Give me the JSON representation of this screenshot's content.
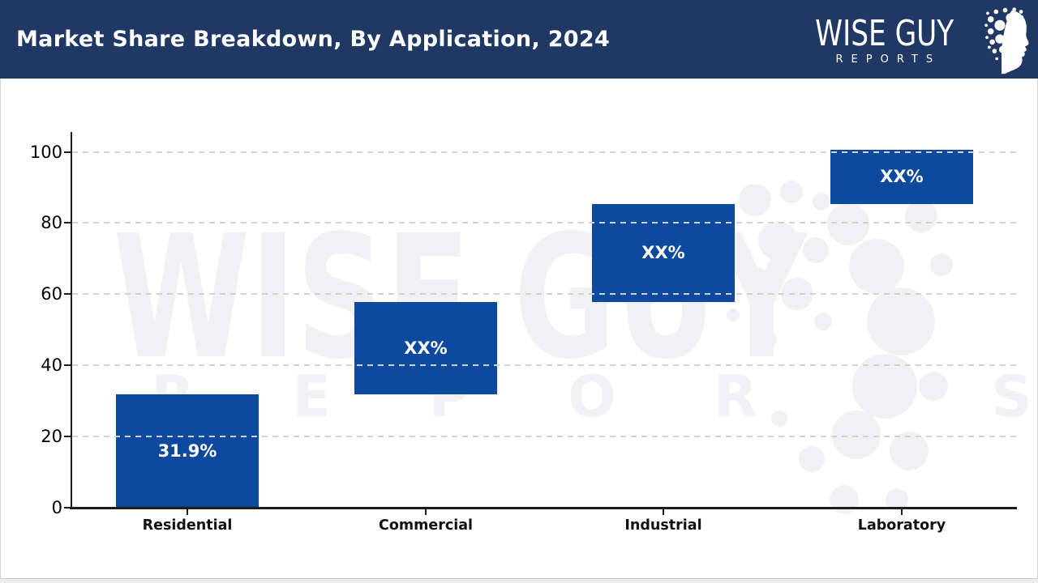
{
  "header": {
    "title": "Market Share Breakdown, By Application, 2024",
    "background_color": "#203864",
    "logo": {
      "wordmark": "WISE GUY",
      "subtext": "REPORTS"
    }
  },
  "watermark": {
    "line1": "WISE GUY",
    "line2": "R E P O R T S"
  },
  "chart_data": {
    "type": "bar",
    "subtype": "floating-waterfall",
    "title": "Market Share Breakdown, By Application, 2024",
    "categories": [
      "Residential",
      "Commercial",
      "Industrial",
      "Laboratory"
    ],
    "series": [
      {
        "name": "Market share (%)",
        "segments": [
          {
            "category": "Residential",
            "from": 0,
            "to": 31.9,
            "label": "31.9%"
          },
          {
            "category": "Commercial",
            "from": 31.9,
            "to": 57.8,
            "label": "XX%"
          },
          {
            "category": "Industrial",
            "from": 57.8,
            "to": 85.4,
            "label": "XX%"
          },
          {
            "category": "Laboratory",
            "from": 85.4,
            "to": 100.5,
            "label": "XX%"
          }
        ]
      }
    ],
    "yticks": [
      0,
      20,
      40,
      60,
      80,
      100
    ],
    "ylim": [
      0,
      105
    ],
    "xlabel": "",
    "ylabel": "",
    "grid": "horizontal-dashed",
    "legend": "none",
    "bar_color": "#0d4a9e",
    "bar_label_color": "#ffffff",
    "axis_color": "#1c1c1c"
  }
}
